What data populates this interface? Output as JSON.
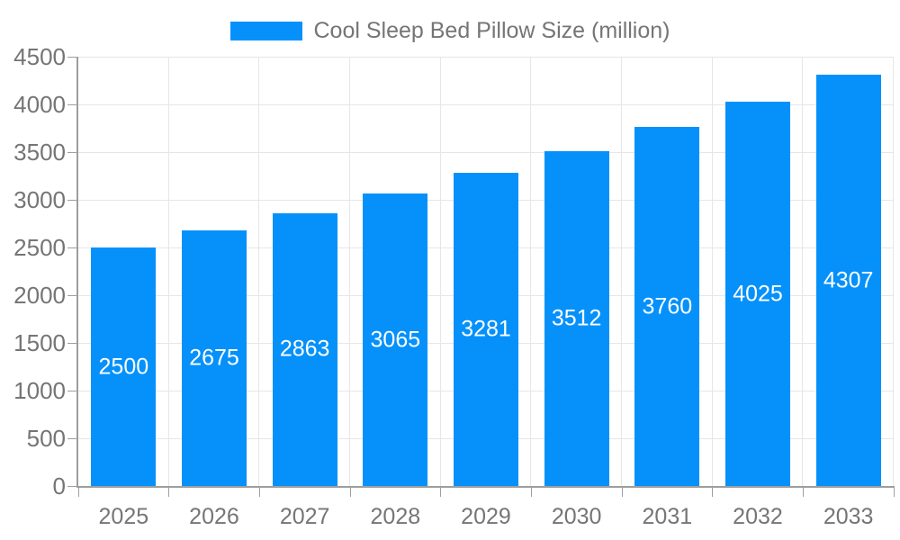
{
  "legend": {
    "label": "Cool Sleep Bed Pillow Size (million)"
  },
  "chart_data": {
    "type": "bar",
    "title": "Cool Sleep Bed Pillow Size (million)",
    "categories": [
      "2025",
      "2026",
      "2027",
      "2028",
      "2029",
      "2030",
      "2031",
      "2032",
      "2033"
    ],
    "values": [
      2500,
      2675,
      2863,
      3065,
      3281,
      3512,
      3760,
      4025,
      4307
    ],
    "xlabel": "",
    "ylabel": "",
    "ylim": [
      0,
      4500
    ],
    "ytick_step": 500,
    "ytick_labels": [
      "0",
      "500",
      "1000",
      "1500",
      "2000",
      "2500",
      "3000",
      "3500",
      "4000",
      "4500"
    ],
    "grid": true,
    "legend_position": "top",
    "bar_labels_inside": true,
    "colors": {
      "bar": "#0691fa",
      "bar_label": "#ffffff",
      "axis_text": "#757575",
      "grid_line": "#e6e6e6",
      "axis_line": "#9e9e9e",
      "background": "#ffffff"
    }
  }
}
